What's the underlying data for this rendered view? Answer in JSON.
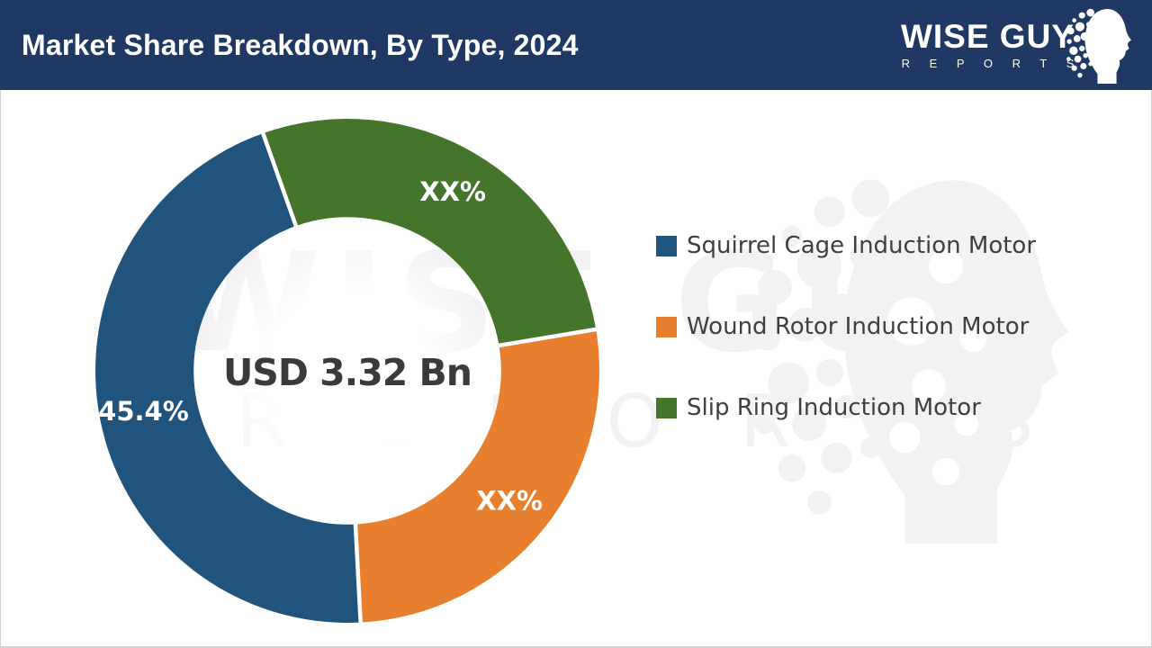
{
  "header": {
    "title": "Market Share Breakdown, By Type, 2024",
    "bg_color": "#203864",
    "logo": {
      "line1": "WISE GUY",
      "line2": "R E P O R T S"
    }
  },
  "watermark": {
    "line1": "WISE GUY",
    "line2": "R E P O R T S"
  },
  "chart_data": {
    "type": "pie",
    "subtype": "donut",
    "title": "Market Share Breakdown, By Type, 2024",
    "center_label": "USD 3.32 Bn",
    "donut_hole_ratio": 0.61,
    "start_angle_deg": 177,
    "label_radius_ratio": 0.825,
    "slices": [
      {
        "name": "Squirrel Cage Induction Motor",
        "value": 45.4,
        "label": "45.4%",
        "color": "#20547c"
      },
      {
        "name": "Slip Ring Induction Motor",
        "value": 27.8,
        "label": "XX%",
        "color": "#45752b"
      },
      {
        "name": "Wound Rotor Induction Motor",
        "value": 26.8,
        "label": "XX%",
        "color": "#e87f2e"
      }
    ],
    "legend": {
      "position": "right",
      "items": [
        {
          "label": "Squirrel Cage Induction Motor",
          "color": "#20547c"
        },
        {
          "label": "Wound Rotor Induction Motor",
          "color": "#e87f2e"
        },
        {
          "label": "Slip Ring Induction Motor",
          "color": "#45752b"
        }
      ]
    }
  }
}
